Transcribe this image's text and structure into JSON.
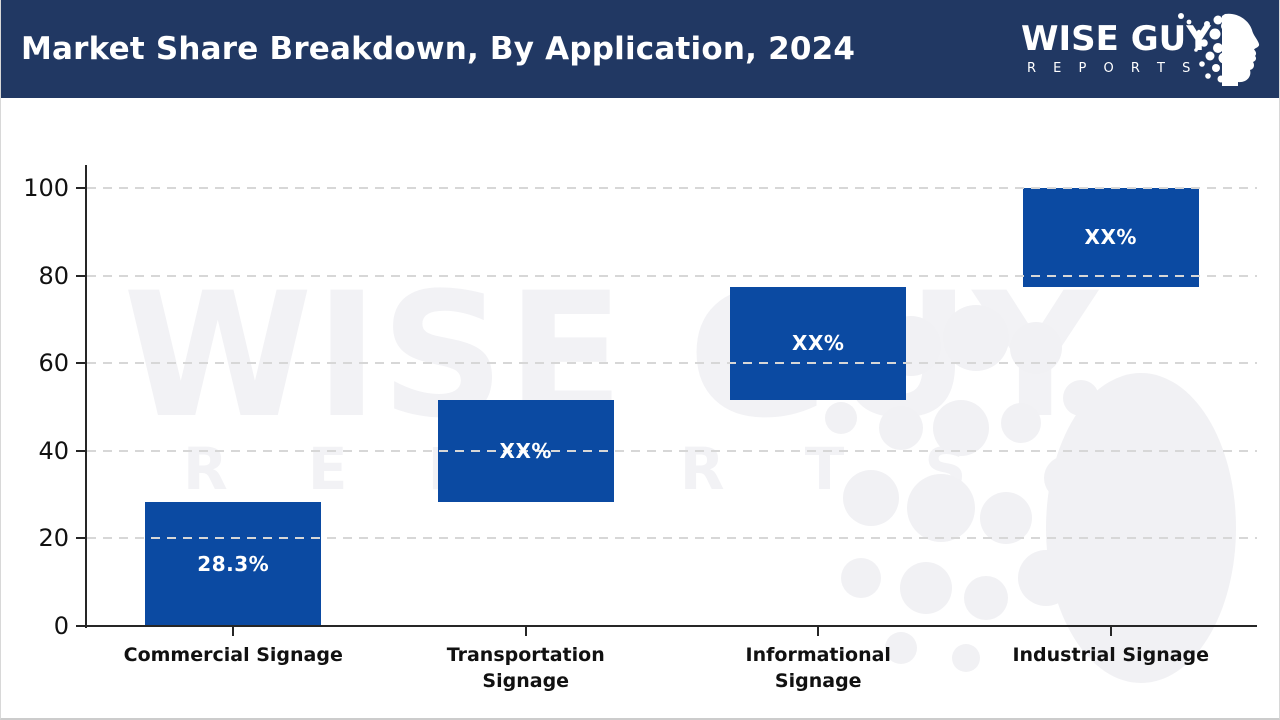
{
  "header": {
    "title": "Market Share Breakdown, By Application, 2024",
    "logo": {
      "line1": "WISE GUY",
      "line2": "R E P O R T S"
    }
  },
  "watermark": {
    "line1": "WISE GUY",
    "line2": "R E P O R T S"
  },
  "chart_data": {
    "type": "bar",
    "subtype": "waterfall",
    "title": "Market Share Breakdown, By Application, 2024",
    "categories": [
      "Commercial Signage",
      "Transportation Signage",
      "Informational Signage",
      "Industrial Signage"
    ],
    "segments": [
      {
        "category": "Commercial Signage",
        "category_display": "Commercial Signage",
        "start": 0,
        "end": 28.3,
        "label": "28.3%"
      },
      {
        "category": "Transportation Signage",
        "category_display": "Transportation\nSignage",
        "start": 28.3,
        "end": 51.5,
        "label": "XX%"
      },
      {
        "category": "Informational Signage",
        "category_display": "Informational\nSignage",
        "start": 51.5,
        "end": 77.5,
        "label": "XX%"
      },
      {
        "category": "Industrial Signage",
        "category_display": "Industrial Signage",
        "start": 77.5,
        "end": 100,
        "label": "XX%"
      }
    ],
    "yticks": [
      0,
      20,
      40,
      60,
      80,
      100
    ],
    "ylim": [
      0,
      105
    ],
    "xlabel": "",
    "ylabel": "",
    "legend": null,
    "grid": "horizontal-dashed",
    "colors": {
      "bar": "#0B4AA2",
      "bar_label": "#FFFFFF",
      "grid": "#D7D7D7",
      "axis": "#262626",
      "tick_label": "#111111",
      "header_bg": "#213863",
      "header_text": "#FFFFFF",
      "watermark": "#F2F2F5"
    }
  }
}
